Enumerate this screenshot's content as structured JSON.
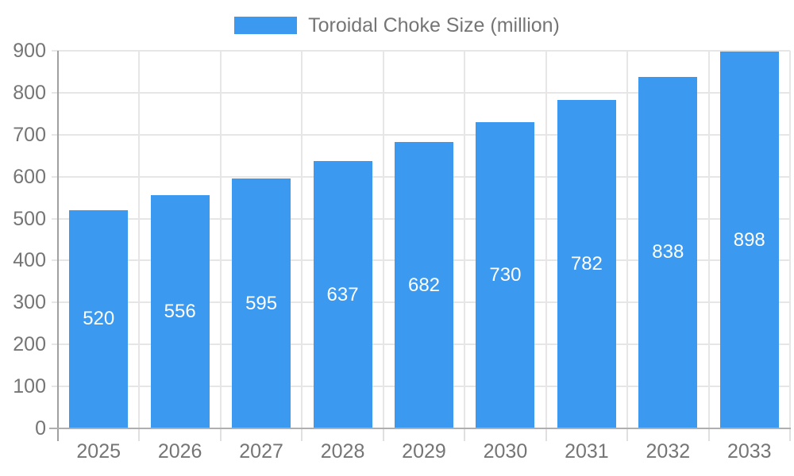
{
  "page": {
    "background": "#FFFFFF"
  },
  "legend": {
    "label": "Toroidal Choke Size (million)"
  },
  "chart_data": {
    "type": "bar",
    "title": "Toroidal Choke Size (million)",
    "categories": [
      "2025",
      "2026",
      "2027",
      "2028",
      "2029",
      "2030",
      "2031",
      "2032",
      "2033"
    ],
    "values": [
      520,
      556,
      595,
      637,
      682,
      730,
      782,
      838,
      898
    ],
    "xlabel": "",
    "ylabel": "",
    "ylim": [
      0,
      900
    ],
    "ytick_step": 100,
    "yticks": [
      0,
      100,
      200,
      300,
      400,
      500,
      600,
      700,
      800,
      900
    ],
    "grid": true,
    "legend_position": "top-center",
    "value_labels": "inside-center",
    "colors": {
      "series": "#3C99F0",
      "value_label": "#FFFFFF",
      "axis_text": "#757575",
      "legend_text": "#757575",
      "gridline": "#E6E6E6",
      "y_axis_line": "#A0A0A0",
      "x_axis_line": "#AFAFAF",
      "tick": "#E0E0E0",
      "background": "#FFFFFF"
    }
  }
}
